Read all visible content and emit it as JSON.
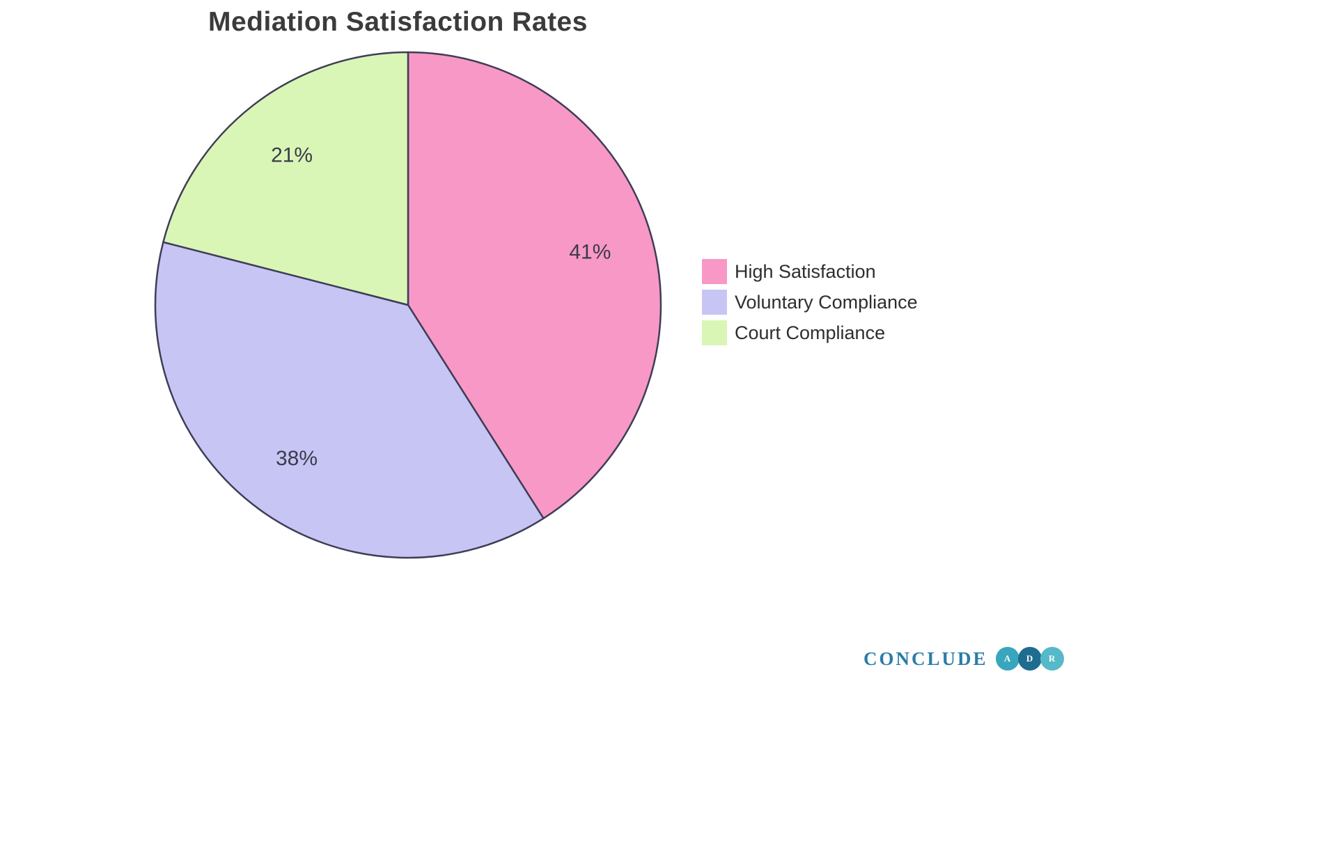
{
  "chart_data": {
    "type": "pie",
    "title": "Mediation Satisfaction Rates",
    "labels": [
      "High Satisfaction",
      "Voluntary Compliance",
      "Court Compliance"
    ],
    "values": [
      41,
      38,
      21
    ],
    "slice_labels": [
      "41%",
      "38%",
      "21%"
    ],
    "colors": [
      "#F898C6",
      "#C7C5F4",
      "#D9F6B7"
    ],
    "outline_color": "#3F3D56",
    "start_angle": "top",
    "direction": "clockwise",
    "legend_position": "right"
  },
  "branding": {
    "wordmark": "CONCLUDE",
    "wordmark_color": "#2B7BA8",
    "badge_letters": [
      "A",
      "D",
      "R"
    ],
    "badge_colors": [
      "#38A6BD",
      "#1F6C91",
      "#55B9CA"
    ]
  }
}
